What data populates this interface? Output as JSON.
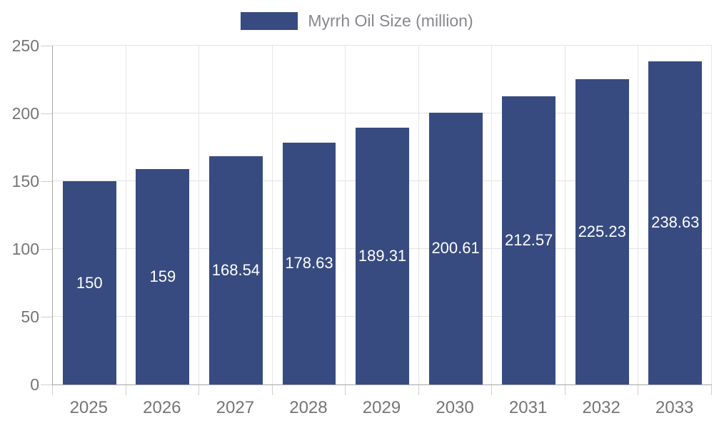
{
  "legend": {
    "label": "Myrrh Oil Size (million)"
  },
  "colors": {
    "bar": "#374B80",
    "bar_label": "#ffffff",
    "axis_line": "#a6a6a6",
    "grid_line": "#e3e3e3",
    "tick": "#cfcfcf",
    "axis_text": "#757575",
    "legend_text": "#86888e",
    "background": "#ffffff"
  },
  "chart_data": {
    "type": "bar",
    "title": "Myrrh Oil Size (million)",
    "categories": [
      "2025",
      "2026",
      "2027",
      "2028",
      "2029",
      "2030",
      "2031",
      "2032",
      "2033"
    ],
    "values": [
      150,
      159,
      168.54,
      178.63,
      189.31,
      200.61,
      212.57,
      225.23,
      238.63
    ],
    "value_labels": [
      "150",
      "159",
      "168.54",
      "178.63",
      "189.31",
      "200.61",
      "212.57",
      "225.23",
      "238.63"
    ],
    "series_name": "Myrrh Oil Size (million)",
    "xlabel": "",
    "ylabel": "",
    "ylim": [
      0,
      250
    ],
    "yticks": [
      0,
      50,
      100,
      150,
      200,
      250
    ],
    "grid": true,
    "legend_position": "top",
    "bar_label_position": "center-inside"
  }
}
